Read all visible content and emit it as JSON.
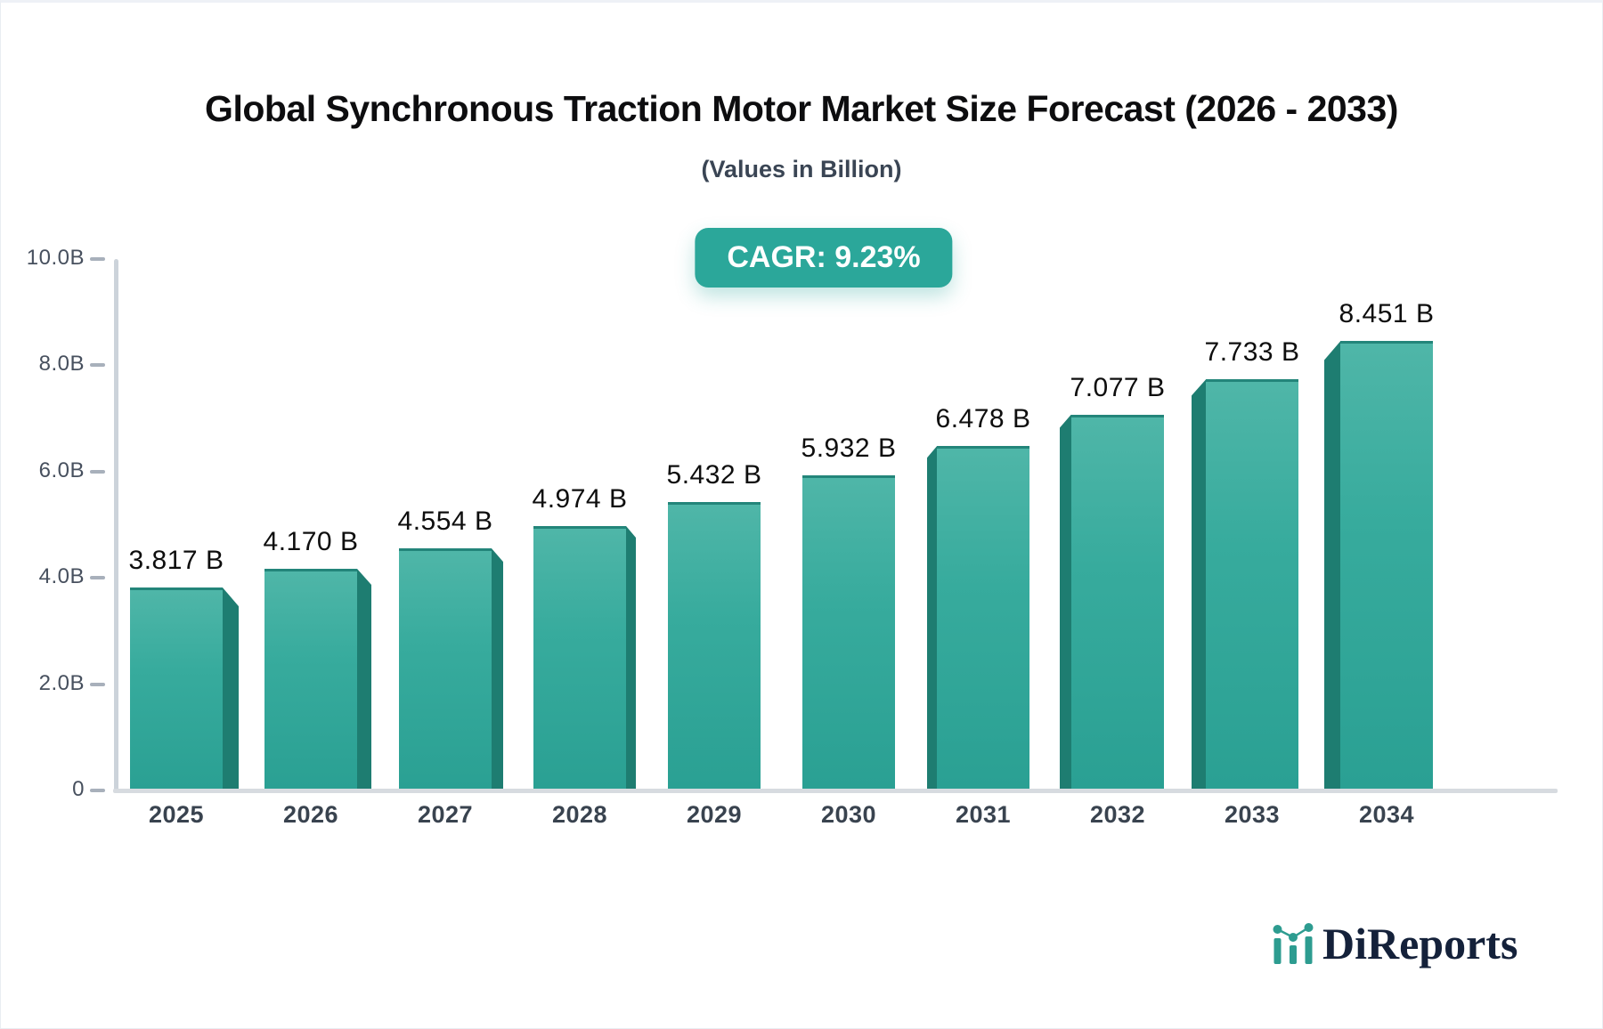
{
  "header": {
    "title": "Global Synchronous Traction Motor Market Size Forecast (2026 - 2033)",
    "subtitle": "(Values in Billion)",
    "cagr_label": "CAGR: 9.23%"
  },
  "chart_data": {
    "type": "bar",
    "title": "Global Synchronous Traction Motor Market Size Forecast (2026 - 2033)",
    "subtitle": "(Values in Billion)",
    "cagr": "9.23%",
    "categories": [
      "2025",
      "2026",
      "2027",
      "2028",
      "2029",
      "2030",
      "2031",
      "2032",
      "2033",
      "2034"
    ],
    "values": [
      3.817,
      4.17,
      4.554,
      4.974,
      5.432,
      5.932,
      6.478,
      7.077,
      7.733,
      8.451
    ],
    "value_labels": [
      "3.817 B",
      "4.170 B",
      "4.554 B",
      "4.974 B",
      "5.432 B",
      "5.932 B",
      "6.478 B",
      "7.077 B",
      "7.733 B",
      "8.451 B"
    ],
    "xlabel": "",
    "ylabel": "",
    "ylim": [
      0,
      10
    ],
    "y_tick_labels": [
      "0",
      "2.0B",
      "4.0B",
      "6.0B",
      "8.0B",
      "10.0B"
    ],
    "grid": false,
    "legend": null,
    "style": "3d-perspective-bars"
  },
  "colors": {
    "bar_accent": "#2ba79a",
    "bar_front_top": "#4fb6a8",
    "bar_front_bottom": "#2aa093",
    "bar_side": "#1e7d71",
    "badge_bg": "#2ba79a",
    "badge_text": "#ffffff",
    "axis_line": "#ccd3da",
    "tick_text": "#47505e",
    "title_text": "#0d0d0f",
    "brand_navy": "#14213a",
    "brand_teal": "#2d9c90"
  },
  "branding": {
    "logo_text": "DiReports"
  }
}
